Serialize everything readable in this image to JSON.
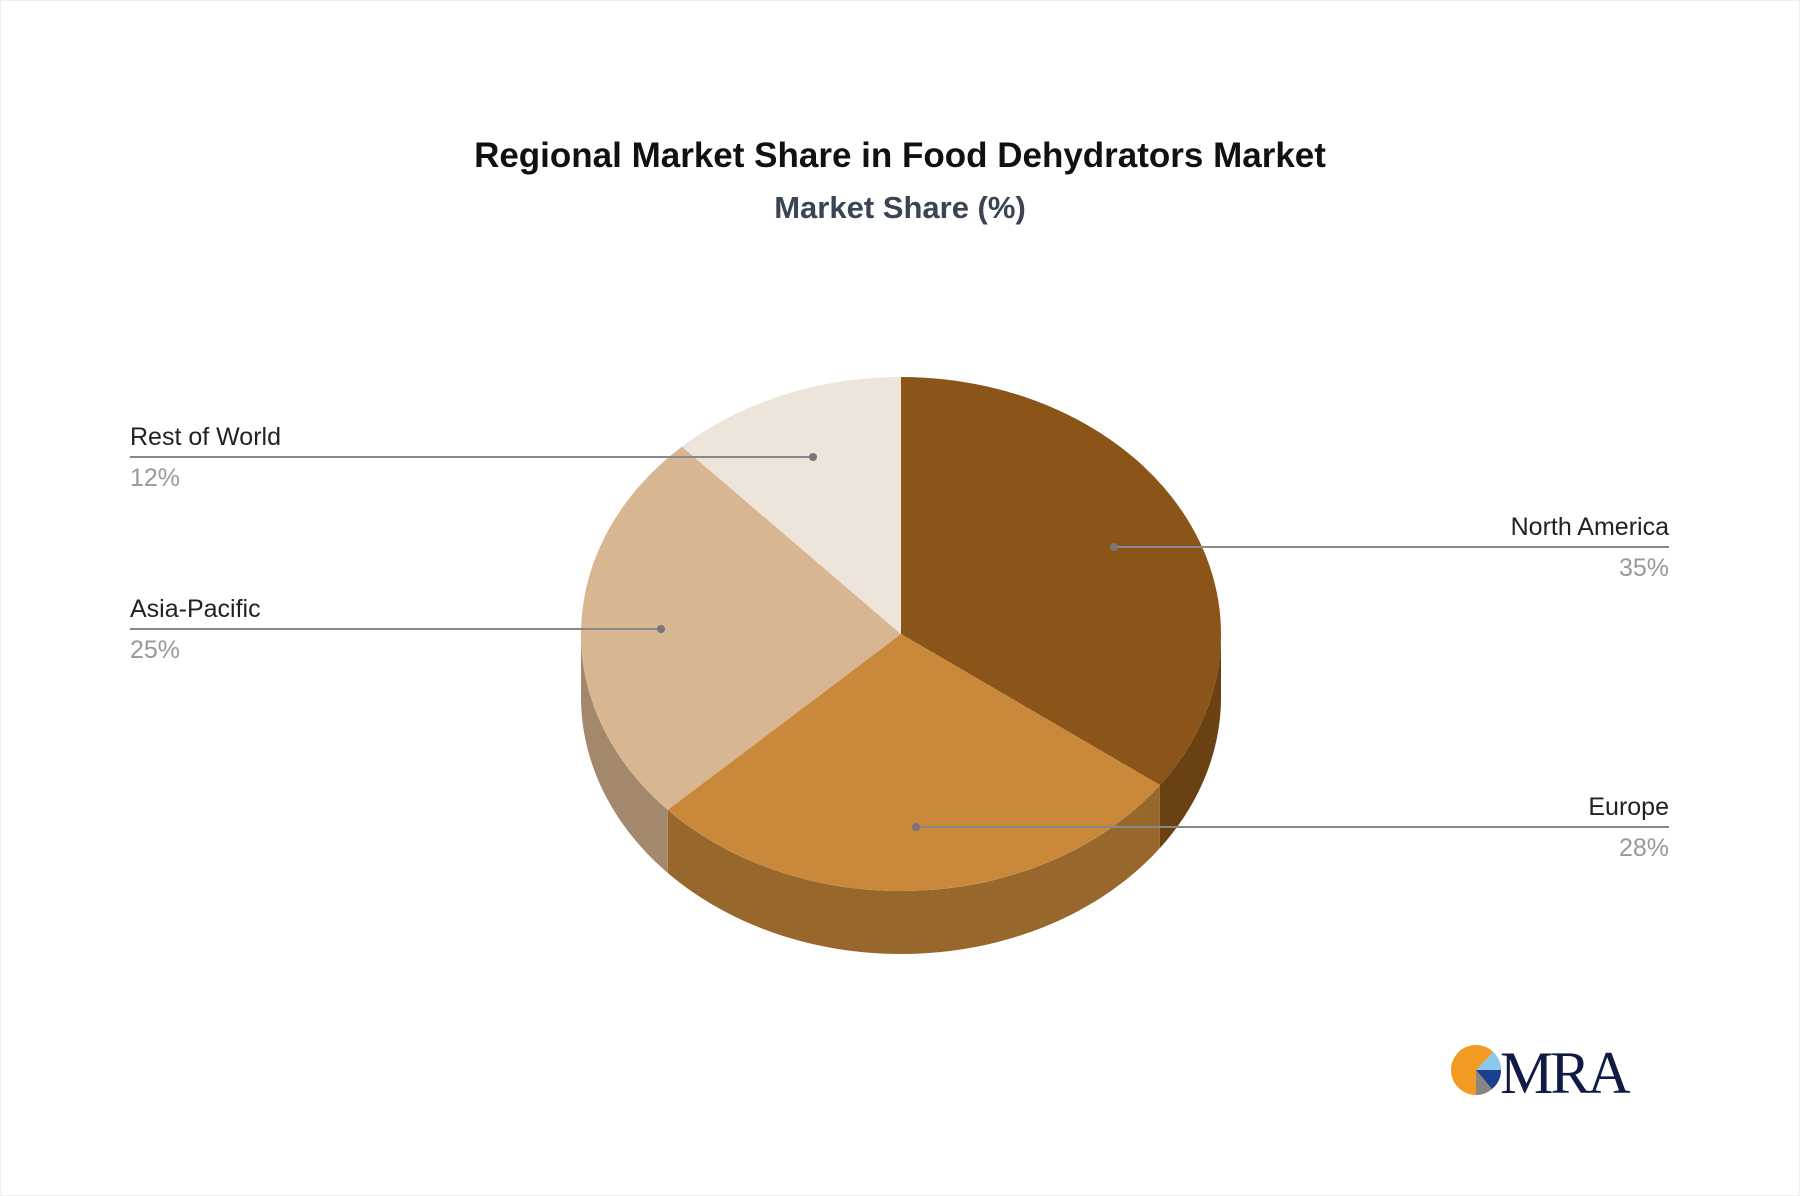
{
  "chart_data": {
    "type": "pie",
    "title": "Regional Market Share in Food Dehydrators Market",
    "subtitle": "Market Share (%)",
    "style": "3d",
    "slices": [
      {
        "label": "North America",
        "value": 35,
        "value_label": "35%",
        "color": "#8B5519",
        "side_color": "#6A4113"
      },
      {
        "label": "Europe",
        "value": 28,
        "value_label": "28%",
        "color": "#C9883A",
        "side_color": "#98672C"
      },
      {
        "label": "Asia-Pacific",
        "value": 25,
        "value_label": "25%",
        "color": "#D7B691",
        "side_color": "#A3886B"
      },
      {
        "label": "Rest of World",
        "value": 12,
        "value_label": "12%",
        "color": "#EDE4DA",
        "side_color": "#B5ADA5"
      }
    ]
  },
  "logo": {
    "text": "MRA"
  }
}
